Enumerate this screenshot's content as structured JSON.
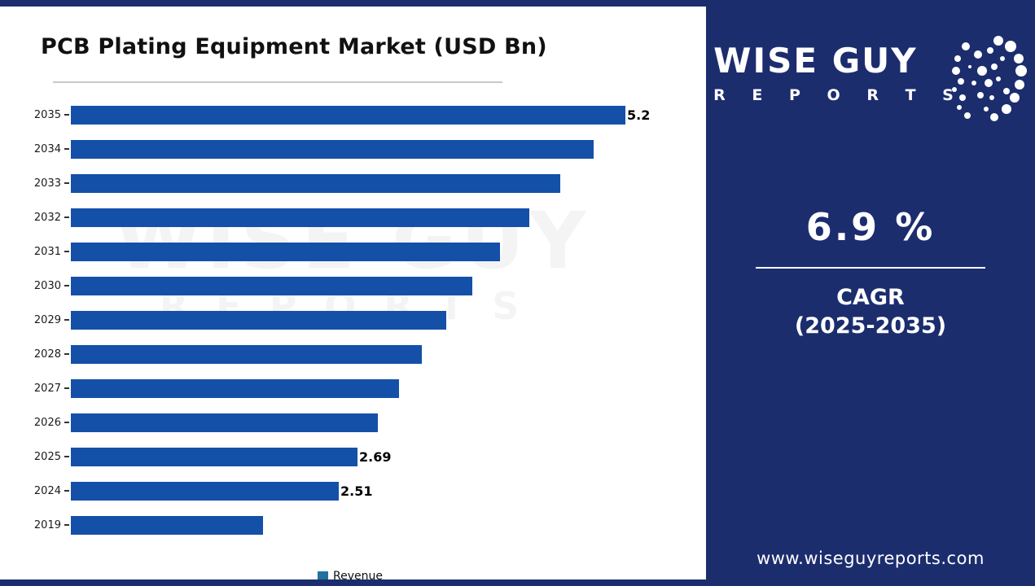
{
  "page": {
    "title": "PCB Plating Equipment Market (USD Bn)"
  },
  "watermark": {
    "line1": "WISE GUY",
    "line2": "REPORTS"
  },
  "chart_data": {
    "type": "bar",
    "orientation": "horizontal",
    "title": "PCB Plating Equipment Market (USD Bn)",
    "xlabel": "",
    "ylabel": "",
    "unit": "USD Bn",
    "xlim": [
      0,
      5.5
    ],
    "grid": false,
    "legend_position": "bottom",
    "bar_color": "#1450a8",
    "categories": [
      "2035",
      "2034",
      "2033",
      "2032",
      "2031",
      "2030",
      "2029",
      "2028",
      "2027",
      "2026",
      "2025",
      "2024",
      "2019"
    ],
    "series": [
      {
        "name": "Revenue",
        "values": [
          5.2,
          4.9,
          4.59,
          4.3,
          4.02,
          3.76,
          3.52,
          3.29,
          3.08,
          2.88,
          2.69,
          2.51,
          1.8
        ],
        "labels": [
          "5.2",
          "",
          "",
          "",
          "",
          "",
          "",
          "",
          "",
          "",
          "2.69",
          "2.51",
          ""
        ]
      }
    ]
  },
  "legend": {
    "label": "Revenue",
    "swatch_color": "#21729e"
  },
  "sidebar": {
    "bg_color": "#1c2d6e",
    "logo": {
      "line1": "WISE GUY",
      "line2": "R E P O R T S"
    },
    "cagr_value": "6.9 %",
    "cagr_label": "CAGR",
    "cagr_period": "(2025-2035)",
    "website": "www.wiseguyreports.com"
  }
}
